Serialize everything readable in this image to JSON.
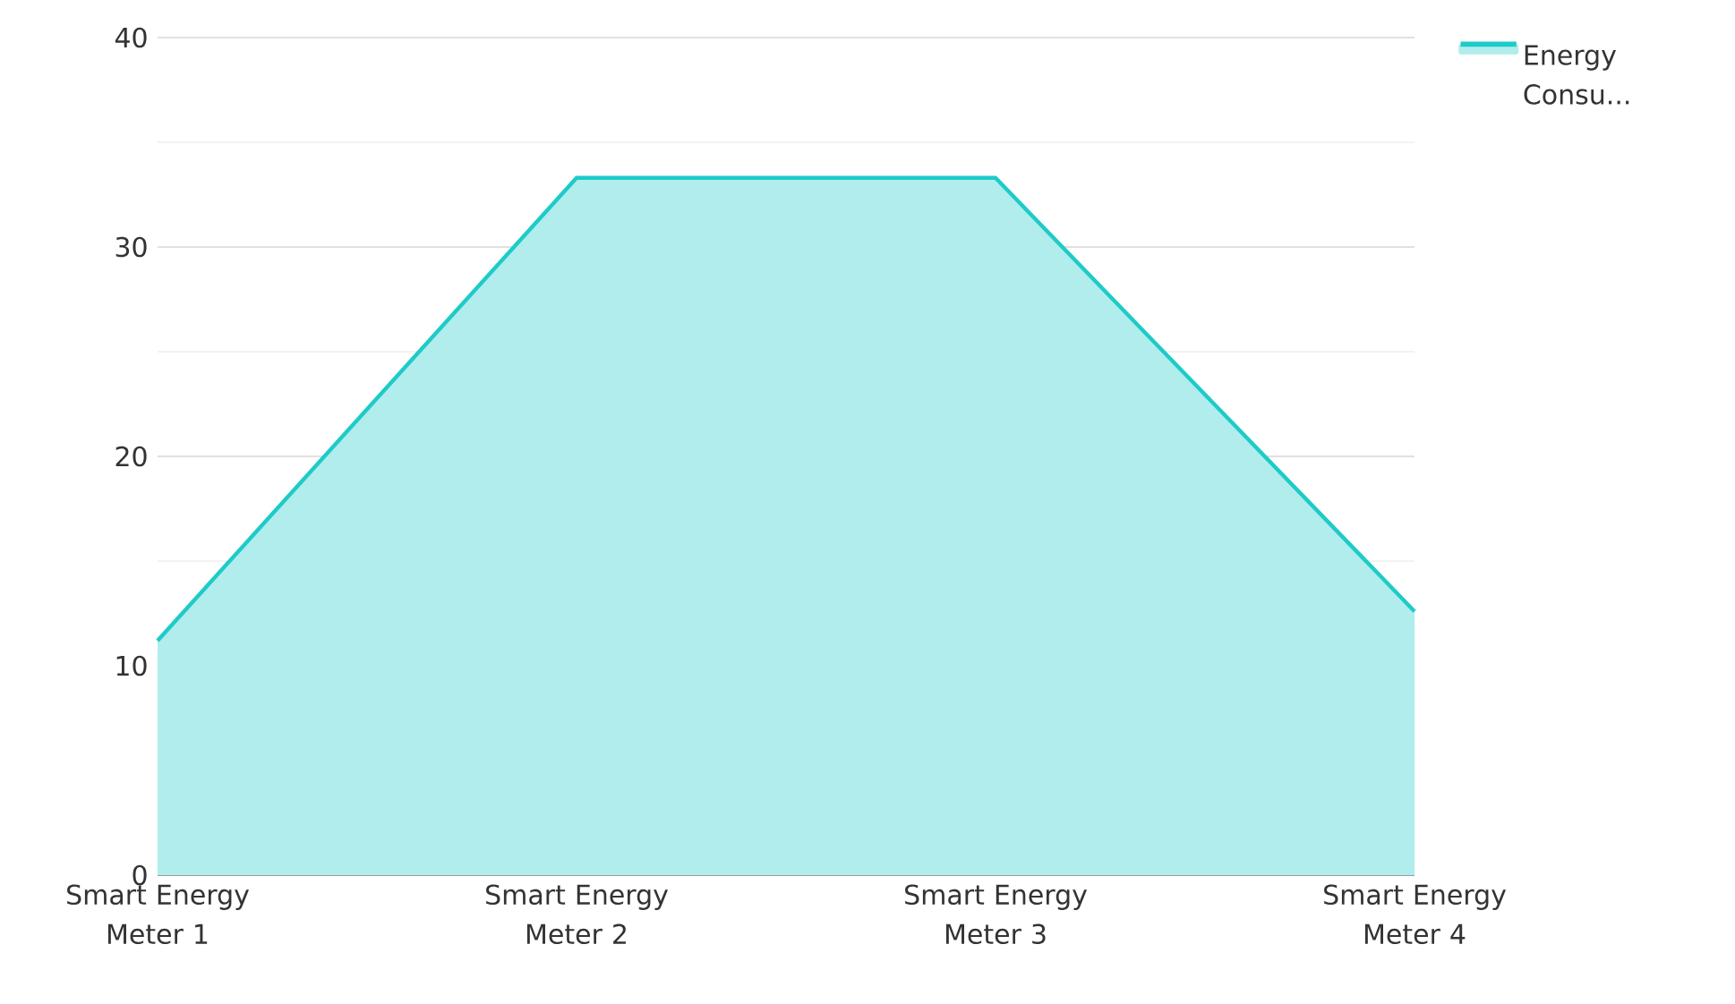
{
  "chart_data": {
    "type": "area",
    "categories": [
      "Smart Energy Meter 1",
      "Smart Energy Meter 2",
      "Smart Energy Meter 3",
      "Smart Energy Meter 4"
    ],
    "series": [
      {
        "name": "Energy Consu...",
        "color": "#1ecbc8",
        "values": [
          11.2,
          33.3,
          33.3,
          12.6
        ]
      }
    ],
    "ylim": [
      0,
      40
    ],
    "yticks": [
      0,
      10,
      20,
      30,
      40
    ],
    "grid": "y",
    "legend": "top right"
  }
}
